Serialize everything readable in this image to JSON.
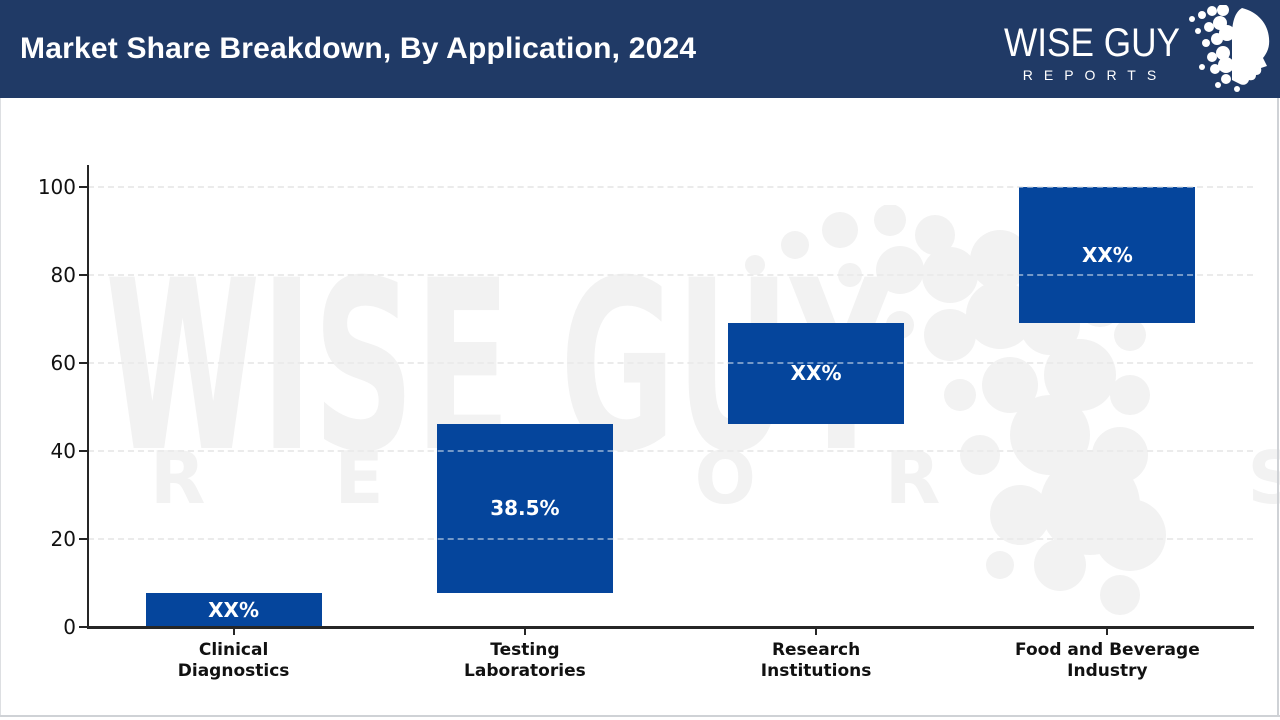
{
  "header": {
    "title": "Market Share Breakdown, By Application, 2024",
    "logo": {
      "wordmark": "WISE GUY",
      "sub": "REPORTS"
    }
  },
  "watermark": {
    "wordmark": "WISE GUY",
    "sub": "R E P O R T S"
  },
  "chart_data": {
    "type": "bar",
    "subtype": "floating-waterfall",
    "title": "Market Share Breakdown, By Application, 2024",
    "categories": [
      "Clinical Diagnostics",
      "Testing Laboratories",
      "Research Institutions",
      "Food and Beverage Industry"
    ],
    "category_lines": [
      [
        "Clinical",
        "Diagnostics"
      ],
      [
        "Testing",
        "Laboratories"
      ],
      [
        "Research",
        "Institutions"
      ],
      [
        "Food and Beverage",
        "Industry"
      ]
    ],
    "segments": [
      {
        "category": "Clinical Diagnostics",
        "from": 0,
        "to": 7.7,
        "share": 7.7,
        "label": "XX%"
      },
      {
        "category": "Testing Laboratories",
        "from": 7.7,
        "to": 46.2,
        "share": 38.5,
        "label": "38.5%"
      },
      {
        "category": "Research Institutions",
        "from": 46.2,
        "to": 69.2,
        "share": 23.0,
        "label": "XX%"
      },
      {
        "category": "Food and Beverage Industry",
        "from": 69.2,
        "to": 100,
        "share": 30.8,
        "label": "XX%"
      }
    ],
    "ylim": [
      0,
      105
    ],
    "yticks": [
      0,
      20,
      40,
      60,
      80,
      100
    ],
    "grid": "horizontal-dashed",
    "legend": "none",
    "bar_color": "#05459C"
  },
  "colors": {
    "header_bg": "#203A66",
    "bar_blue": "#05459C",
    "axis_dark": "#262626",
    "grid_gray": "#DBDBDB",
    "watermark_gray": "#F2F2F2",
    "value_label_white": "#FFFFFF"
  }
}
